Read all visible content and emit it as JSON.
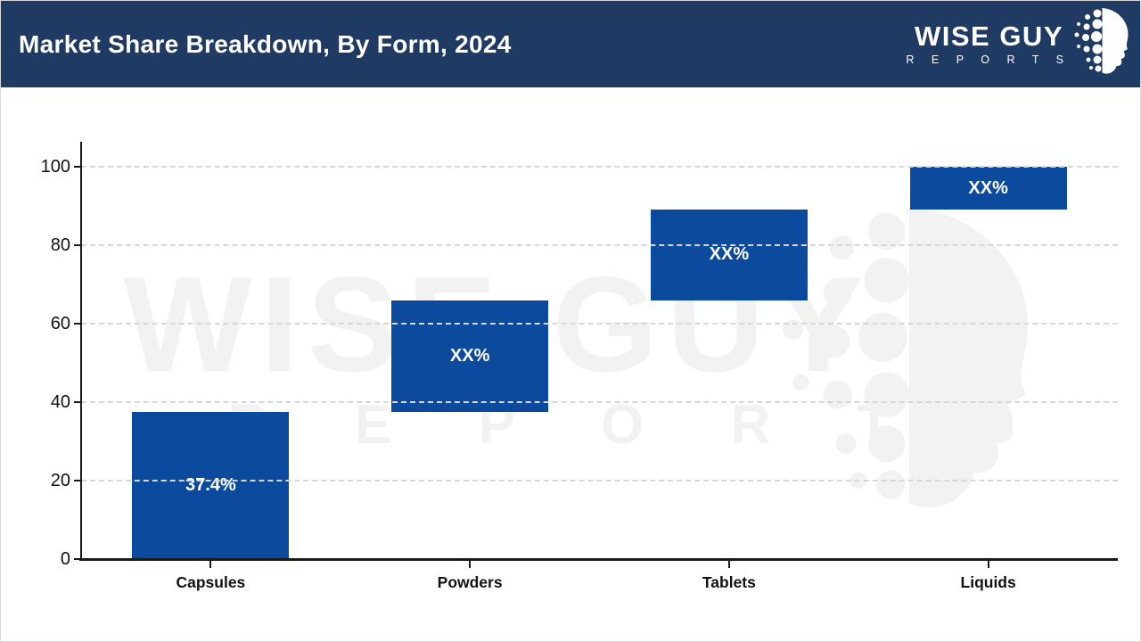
{
  "header": {
    "title": "Market Share Breakdown, By Form, 2024",
    "logo": {
      "line1": "WISE GUY",
      "line2": "R E P O R T S"
    }
  },
  "watermark": {
    "line1": "WISE GUY",
    "line2": "R E P O R T S"
  },
  "colors": {
    "header_bg": "#1f3a63",
    "bar": "#0b4a9d",
    "grid": "#d7d7d7",
    "axis": "#1a1a1a",
    "bar_label": "#ffffff",
    "watermark": "#f2f2f2"
  },
  "chart_data": {
    "type": "bar",
    "subtype": "waterfall",
    "title": "Market Share Breakdown, By Form, 2024",
    "xlabel": "",
    "ylabel": "",
    "categories": [
      "Capsules",
      "Powders",
      "Tablets",
      "Liquids"
    ],
    "segments": [
      {
        "category": "Capsules",
        "start": 0,
        "end": 37.4,
        "label": "37.4%"
      },
      {
        "category": "Powders",
        "start": 37.4,
        "end": 66,
        "label": "XX%"
      },
      {
        "category": "Tablets",
        "start": 66,
        "end": 89,
        "label": "XX%"
      },
      {
        "category": "Liquids",
        "start": 89,
        "end": 100,
        "label": "XX%"
      }
    ],
    "yticks": [
      0,
      20,
      40,
      60,
      80,
      100
    ],
    "ylim": [
      0,
      106
    ],
    "grid": "horizontal dashed",
    "legend": "none",
    "bar_color": "#0b4a9d",
    "value_label_position": "center of bar"
  }
}
